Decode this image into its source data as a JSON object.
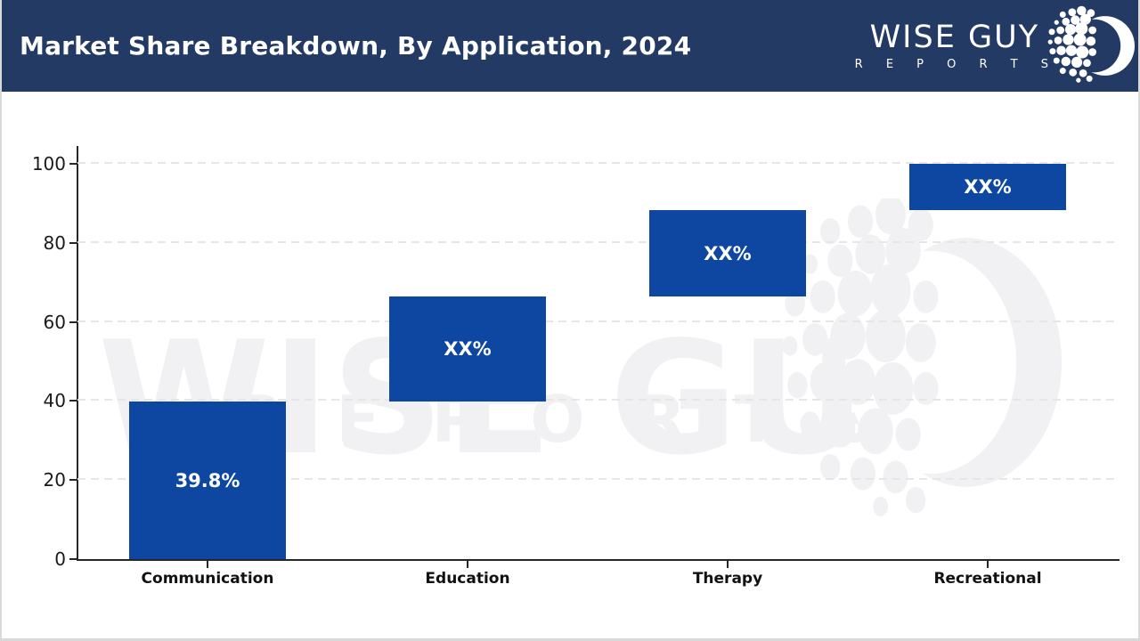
{
  "header": {
    "title": "Market Share Breakdown, By Application, 2024",
    "logo": {
      "name": "WISE GUY",
      "sub": "R E P O R T S",
      "face_icon": "dotted-head-profile-icon"
    }
  },
  "watermark": {
    "line1": "WISE GUY",
    "line2": "REPORTS"
  },
  "chart_data": {
    "type": "bar",
    "subtype": "waterfall",
    "title": "Market Share Breakdown, By Application, 2024",
    "xlabel": "",
    "ylabel": "",
    "categories": [
      "Communication",
      "Education",
      "Therapy",
      "Recreational"
    ],
    "segments": [
      {
        "category": "Communication",
        "start": 0,
        "end": 39.8,
        "label": "39.8%"
      },
      {
        "category": "Education",
        "start": 39.8,
        "end": 66.4,
        "label": "XX%"
      },
      {
        "category": "Therapy",
        "start": 66.4,
        "end": 88.2,
        "label": "XX%"
      },
      {
        "category": "Recreational",
        "start": 88.2,
        "end": 100,
        "label": "XX%"
      }
    ],
    "y_ticks": [
      0,
      20,
      40,
      60,
      80,
      100
    ],
    "ylim": [
      0,
      105
    ],
    "grid": "horizontal dashed",
    "legend": "none"
  },
  "colors": {
    "header_bg": "#223a64",
    "bar": "#0d47a1",
    "bar_label": "#ffffff",
    "axis": "#262626",
    "grid": "#e6e6e8",
    "watermark": "#f1f1f3",
    "page_border": "#d9d9d9"
  }
}
